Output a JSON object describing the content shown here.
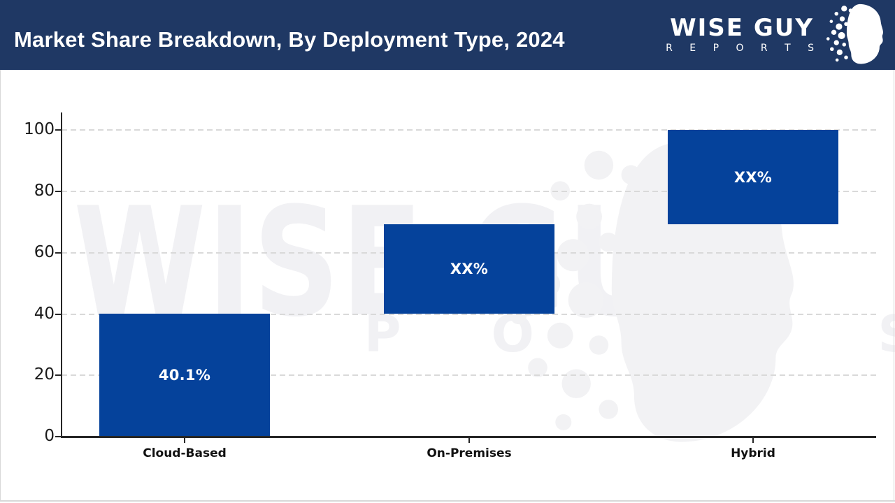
{
  "header": {
    "title": "Market Share Breakdown, By Deployment Type, 2024",
    "logo": {
      "wordmark": "WISE GUY",
      "reports": "R E P O R T S"
    }
  },
  "watermark": {
    "wordmark": "WISE GUY",
    "reports": "R E P O R T S"
  },
  "chart_data": {
    "type": "bar",
    "subtype": "waterfall",
    "title": "Market Share Breakdown, By Deployment Type, 2024",
    "categories": [
      "Cloud-Based",
      "On-Premises",
      "Hybrid"
    ],
    "segments": [
      {
        "category": "Cloud-Based",
        "from": 0,
        "to": 40.1,
        "label": "40.1%"
      },
      {
        "category": "On-Premises",
        "from": 40.1,
        "to": 69.3,
        "label": "XX%"
      },
      {
        "category": "Hybrid",
        "from": 69.3,
        "to": 100,
        "label": "XX%"
      }
    ],
    "ylabel": "",
    "xlabel": "",
    "yticks": [
      0,
      20,
      40,
      60,
      80,
      100
    ],
    "ylim": [
      0,
      106
    ],
    "grid": "horizontal-dashed",
    "legend": "none",
    "bar_color": "#05429B"
  },
  "colors": {
    "header_bg": "#1F3864",
    "bar": "#05429B",
    "grid": "#D9D9D9",
    "axis": "#262626",
    "watermark": "#F1F1F4",
    "rule": "#D8D8D8",
    "title_text": "#FFFFFF",
    "chart_text": "#1A1A1A"
  }
}
